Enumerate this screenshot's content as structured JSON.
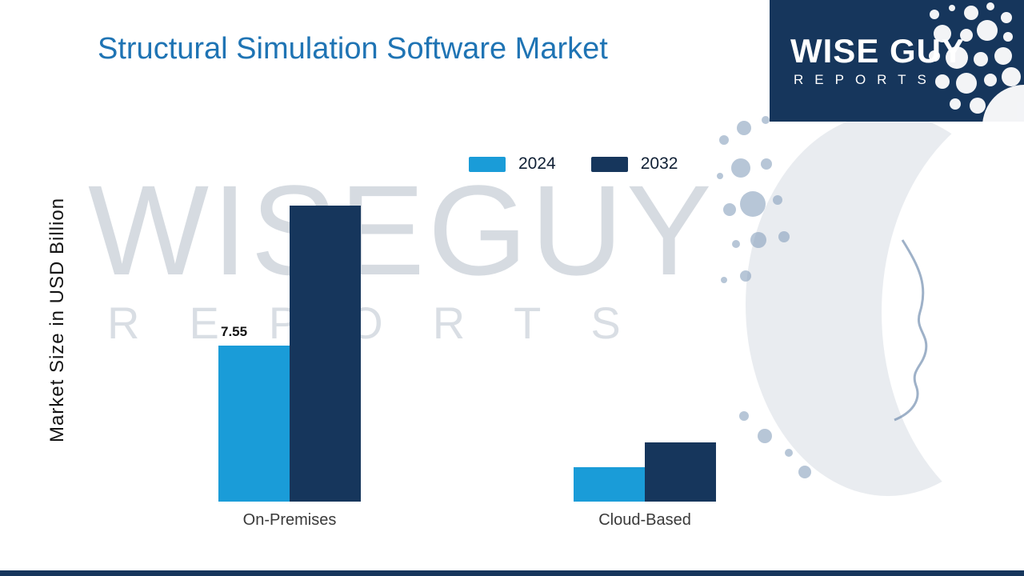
{
  "header": {
    "title": "Structural Simulation Software Market"
  },
  "brand": {
    "line1": "WISE GUY",
    "line2": "REPORTS"
  },
  "watermark": {
    "line1": "WISEGUY",
    "line2": "REPORTS"
  },
  "chart_data": {
    "type": "bar",
    "title": "Structural Simulation Software Market",
    "xlabel": "",
    "ylabel": "Market Size in USD Billion",
    "categories": [
      "On-Premises",
      "Cloud-Based"
    ],
    "series": [
      {
        "name": "2024",
        "color": "#1A9CD8",
        "values": [
          7.55,
          1.65
        ]
      },
      {
        "name": "2032",
        "color": "#16365C",
        "values": [
          14.35,
          2.85
        ]
      }
    ],
    "data_labels": [
      [
        "7.55",
        ""
      ],
      [
        "",
        ""
      ]
    ],
    "ylim": [
      0,
      16
    ],
    "grid": false,
    "legend_position": "top-right"
  },
  "colors": {
    "accent_blue": "#1A9CD8",
    "navy": "#16365C",
    "title_blue": "#1F74B4",
    "watermark_gray": "#D6DBE1"
  }
}
